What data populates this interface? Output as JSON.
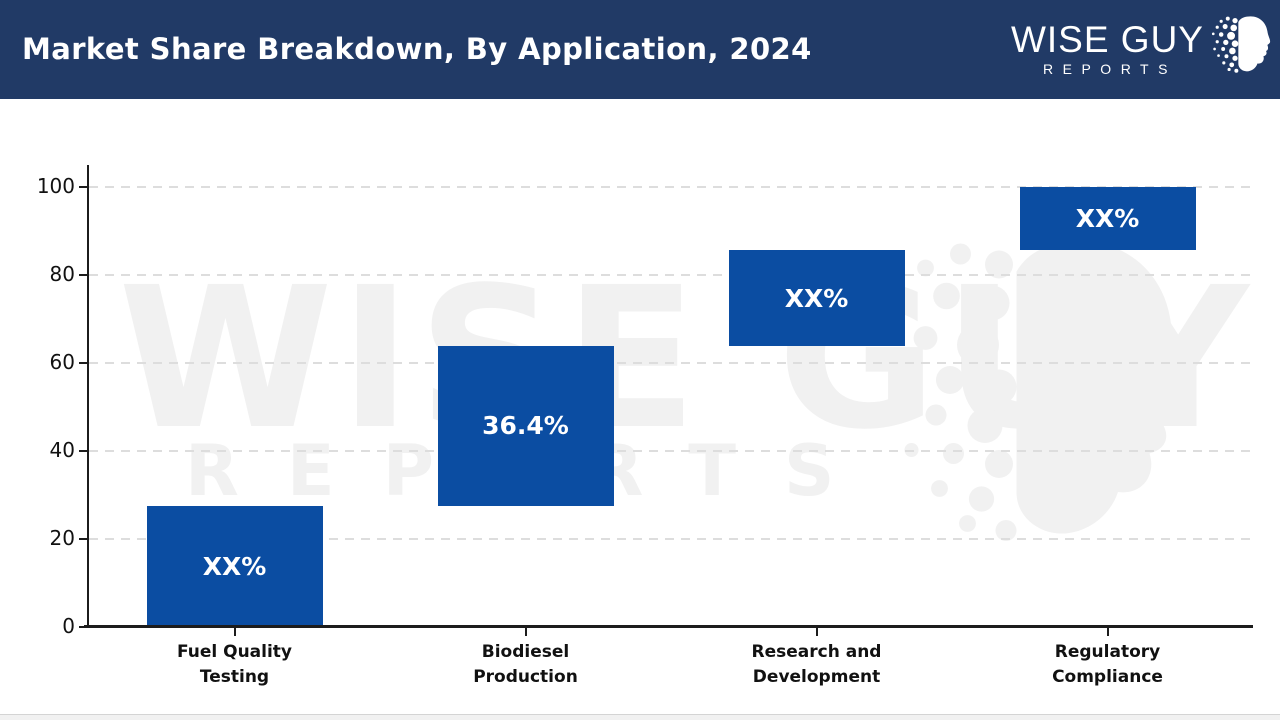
{
  "header": {
    "title": "Market Share Breakdown, By Application, 2024",
    "logo": {
      "line1": "WISE GUY",
      "line2": "REPORTS"
    }
  },
  "watermark": {
    "line1": "WISE GUY",
    "line2": "REPORTS"
  },
  "colors": {
    "header_bg": "#213a66",
    "bar": "#0b4da2",
    "bar_label": "#ffffff",
    "grid": "#dddddd",
    "axis": "#1c1c1c",
    "watermark": "#f1f1f1"
  },
  "chart_data": {
    "type": "bar",
    "subtype": "floating-waterfall",
    "title": "Market Share Breakdown, By Application, 2024",
    "categories": [
      "Fuel Quality\nTesting",
      "Biodiesel\nProduction",
      "Research and\nDevelopment",
      "Regulatory\nCompliance"
    ],
    "series": [
      {
        "name": "Market Share",
        "segments": [
          {
            "category": "Fuel Quality Testing",
            "start": 0,
            "end": 27.5,
            "label": "XX%"
          },
          {
            "category": "Biodiesel Production",
            "start": 27.5,
            "end": 63.9,
            "label": "36.4%"
          },
          {
            "category": "Research and Development",
            "start": 63.9,
            "end": 85.6,
            "label": "XX%"
          },
          {
            "category": "Regulatory Compliance",
            "start": 85.6,
            "end": 100,
            "label": "XX%"
          }
        ]
      }
    ],
    "xlabel": "",
    "ylabel": "",
    "ylim": [
      0,
      100
    ],
    "yticks": [
      0,
      20,
      40,
      60,
      80,
      100
    ],
    "grid": "dashed-horizontal",
    "legend": "none"
  }
}
